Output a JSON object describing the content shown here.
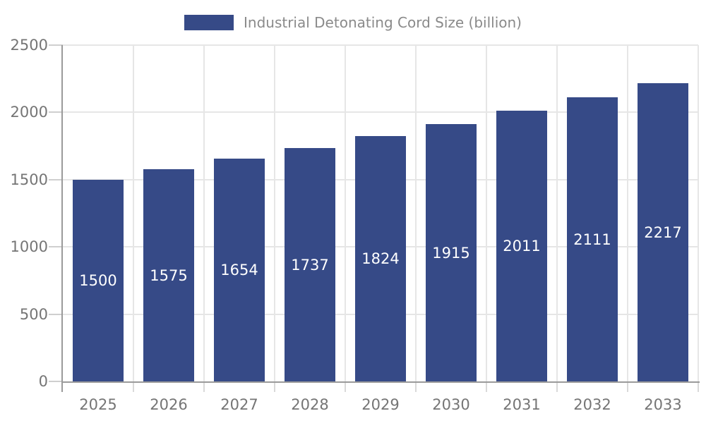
{
  "chart_data": {
    "type": "bar",
    "title": "Industrial Detonating Cord Size (billion)",
    "categories": [
      "2025",
      "2026",
      "2027",
      "2028",
      "2029",
      "2030",
      "2031",
      "2032",
      "2033"
    ],
    "values": [
      1500,
      1575,
      1654,
      1737,
      1824,
      1915,
      2011,
      2111,
      2217
    ],
    "xlabel": "",
    "ylabel": "",
    "ylim": [
      0,
      2500
    ],
    "y_ticks": [
      0,
      500,
      1000,
      1500,
      2000,
      2500
    ],
    "grid": true,
    "legend_position": "top",
    "colors": {
      "bar": "#364A87",
      "bar_label": "#FFFFFF",
      "axis_text": "#757575",
      "legend_text": "#8A8A8A"
    }
  }
}
